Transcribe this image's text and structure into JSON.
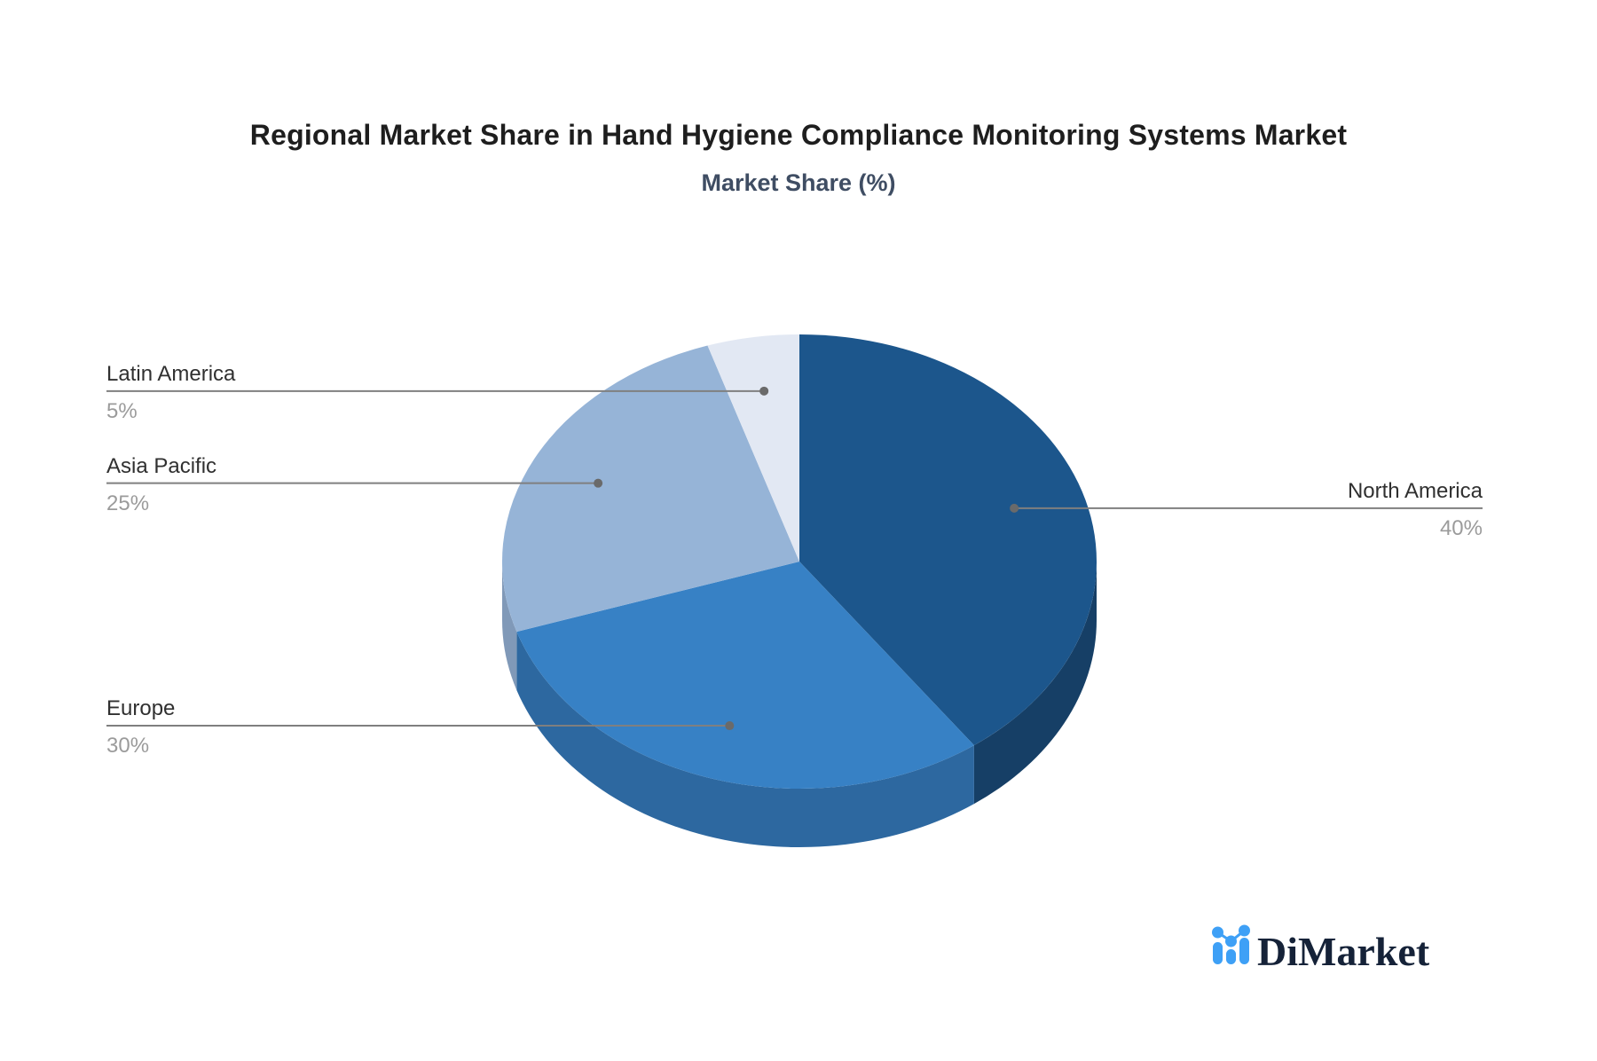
{
  "chart_data": {
    "type": "pie",
    "title": "Regional Market Share in Hand Hygiene Compliance Monitoring Systems Market",
    "subtitle": "Market Share (%)",
    "unit": "%",
    "start_angle_deg": 0,
    "direction": "clockwise",
    "three_d": true,
    "legend_position": "callout-labels",
    "slices": [
      {
        "label": "North America",
        "value": 40,
        "display": "40%",
        "color": "#1C568C",
        "side_color": "#163F66",
        "label_side": "right"
      },
      {
        "label": "Europe",
        "value": 30,
        "display": "30%",
        "color": "#3781C5",
        "side_color": "#2D68A0",
        "label_side": "left"
      },
      {
        "label": "Asia Pacific",
        "value": 25,
        "display": "25%",
        "color": "#96B4D7",
        "side_color": "#8099B8",
        "label_side": "left"
      },
      {
        "label": "Latin America",
        "value": 5,
        "display": "5%",
        "color": "#E2E8F3",
        "label_side": "left"
      }
    ]
  },
  "callouts": {
    "line_color": "#7f7f7f",
    "dot_color": "#6a6a6a",
    "name_color": "#303030",
    "percent_color": "#9b9b9b"
  },
  "branding": {
    "logo_text": "DiMarket",
    "logo_icon": "bar-chart-trend-icon",
    "logo_icon_color": "#3EA0F6",
    "logo_text_color": "#152238"
  }
}
